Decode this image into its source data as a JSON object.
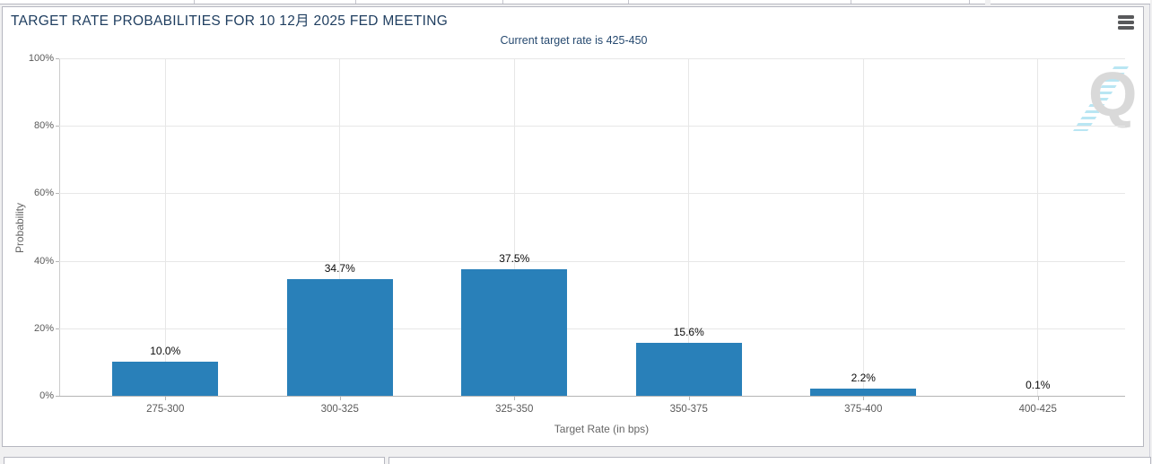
{
  "panel": {
    "title": "TARGET RATE PROBABILITIES FOR 10 12月 2025 FED MEETING",
    "subtitle": "Current target rate is 425-450",
    "menu_icon": "hamburger-icon",
    "watermark_letter": "Q",
    "accent_color": "#1e3d5f"
  },
  "chart_data": {
    "type": "bar",
    "title": "TARGET RATE PROBABILITIES FOR 10 12月 2025 FED MEETING",
    "subtitle": "Current target rate is 425-450",
    "categories": [
      "275-300",
      "300-325",
      "325-350",
      "350-375",
      "375-400",
      "400-425"
    ],
    "values": [
      10.0,
      34.7,
      37.5,
      15.6,
      2.2,
      0.1
    ],
    "value_labels": [
      "10.0%",
      "34.7%",
      "37.5%",
      "15.6%",
      "2.2%",
      "0.1%"
    ],
    "xlabel": "Target Rate (in bps)",
    "ylabel": "Probability",
    "ylim": [
      0,
      100
    ],
    "ytick_labels": [
      "0%",
      "20%",
      "40%",
      "60%",
      "80%",
      "100%"
    ],
    "grid": true,
    "legend_position": "none",
    "bar_color": "#2980b9",
    "gridline_color": "#e7e7e7"
  }
}
